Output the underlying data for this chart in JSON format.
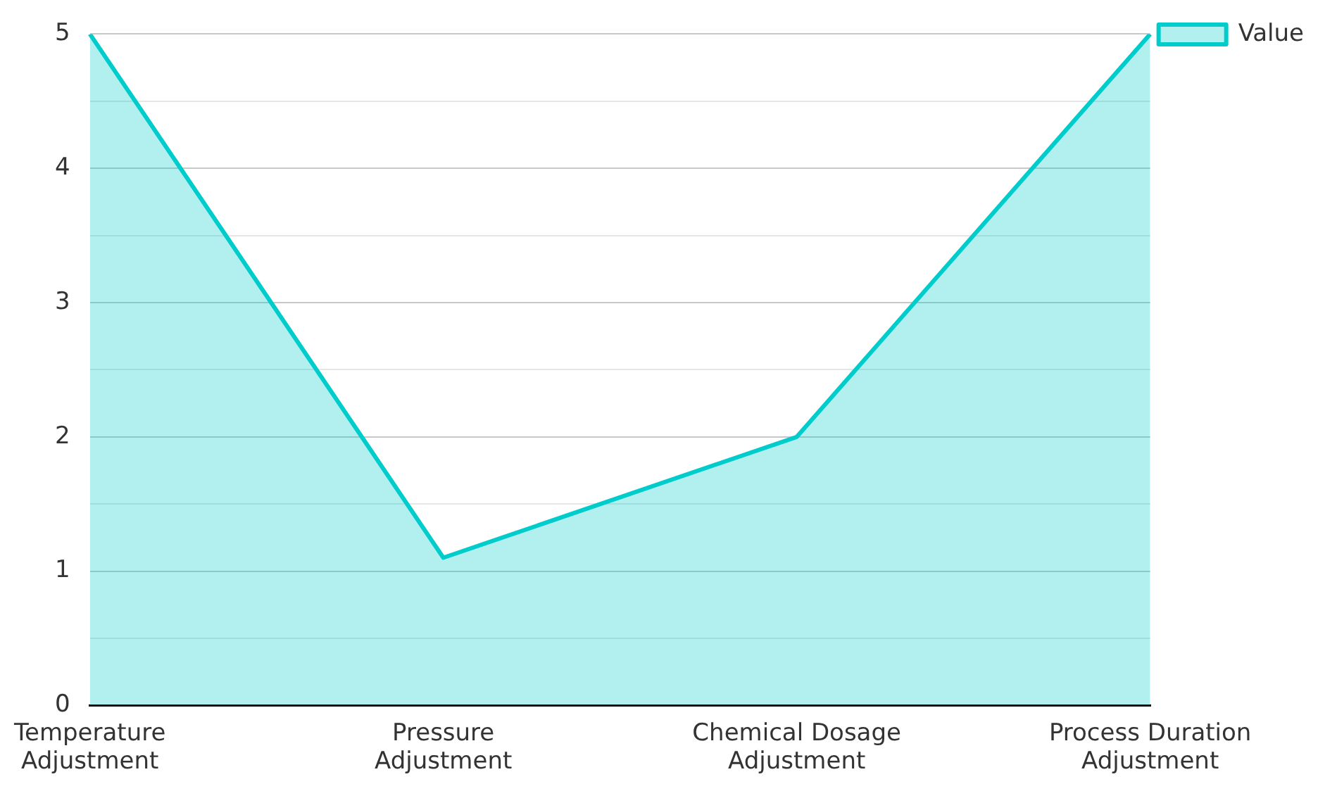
{
  "chart_data": {
    "type": "area",
    "categories": [
      "Temperature Adjustment",
      "Pressure Adjustment",
      "Chemical Dosage Adjustment",
      "Process Duration Adjustment"
    ],
    "series": [
      {
        "name": "Value",
        "color": "#00cccc",
        "values": [
          5,
          1.1,
          2,
          5
        ]
      }
    ],
    "ylim": [
      0,
      5
    ],
    "yticks": [
      0,
      {
        "value": 0.5,
        "label": null
      },
      1,
      {
        "value": 1.5,
        "label": null
      },
      2,
      {
        "value": 2.5,
        "label": null
      },
      3,
      {
        "value": 3.5,
        "label": null
      },
      4,
      {
        "value": 4.5,
        "label": null
      },
      5
    ],
    "grid": "y",
    "legend": "top right",
    "marker": "none"
  }
}
